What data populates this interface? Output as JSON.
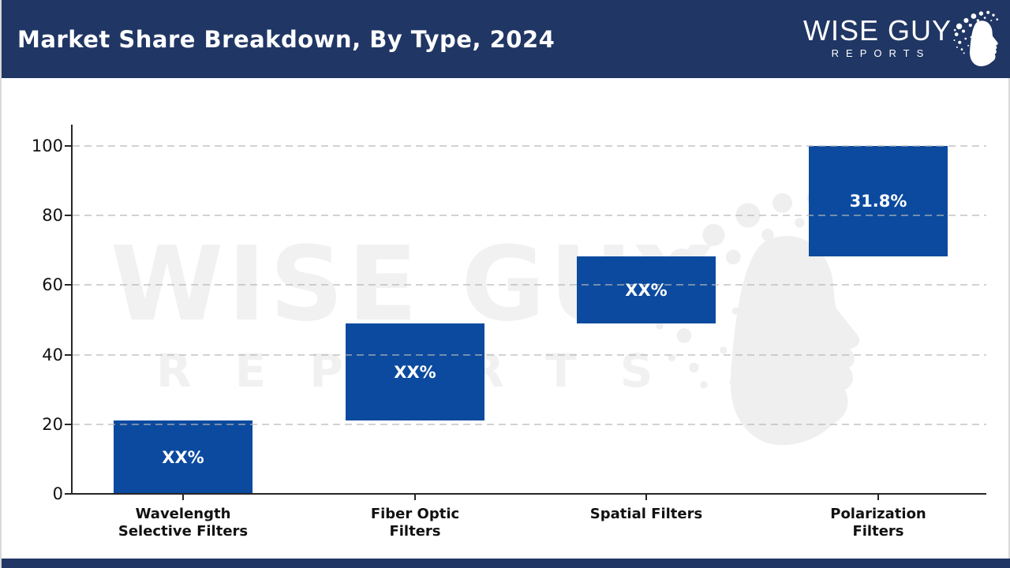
{
  "header": {
    "title": "Market Share Breakdown, By Type, 2024",
    "logo": {
      "name": "WISE GUY",
      "sub": "REPORTS"
    }
  },
  "watermark": {
    "line1": "WISE GUY",
    "line2": "REPORTS"
  },
  "colors": {
    "header_bg": "#203664",
    "footer_bg": "#203664",
    "bar": "#0b4a9f",
    "bar_label_text": "#ffffff",
    "axis": "#262626",
    "tick_label_text": "#111111",
    "gridline": "#d9d9d9",
    "watermark": "#f1f1f1",
    "title_text": "#ffffff"
  },
  "chart_data": {
    "type": "bar",
    "subtype": "floating-waterfall",
    "title": "Market Share Breakdown, By Type, 2024",
    "categories": [
      [
        "Wavelength",
        "Selective Filters"
      ],
      [
        "Fiber Optic",
        "Filters"
      ],
      [
        "Spatial Filters"
      ],
      [
        "Polarization",
        "Filters"
      ]
    ],
    "bars": [
      {
        "category": "Wavelength Selective Filters",
        "label": "XX%",
        "start": 0,
        "end": 21
      },
      {
        "category": "Fiber Optic Filters",
        "label": "XX%",
        "start": 21,
        "end": 49
      },
      {
        "category": "Spatial Filters",
        "label": "XX%",
        "start": 49,
        "end": 68.2
      },
      {
        "category": "Polarization Filters",
        "label": "31.8%",
        "start": 68.2,
        "end": 100
      }
    ],
    "yticks": [
      0,
      20,
      40,
      60,
      80,
      100
    ],
    "ylim": [
      0,
      106
    ],
    "xlabel": "",
    "ylabel": "",
    "grid": "dashed-horizontal",
    "legend": false
  }
}
